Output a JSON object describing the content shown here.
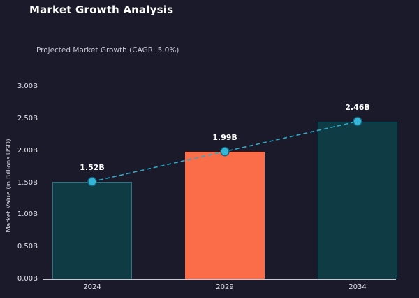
{
  "chart_data": {
    "type": "bar",
    "title": "Market Growth Analysis",
    "subtitle": "Projected Market Growth (CAGR: 5.0%)",
    "categories": [
      "2024",
      "2029",
      "2034"
    ],
    "values": [
      1.52,
      1.99,
      2.46
    ],
    "value_labels": [
      "1.52B",
      "1.99B",
      "2.46B"
    ],
    "xlabel": "",
    "ylabel": "Market Value (in Billions USD)",
    "ylim": [
      0,
      3.0
    ],
    "yticks": [
      0,
      0.5,
      1.0,
      1.5,
      2.0,
      2.5,
      3.0
    ],
    "ytick_labels": [
      "0.00B",
      "0.50B",
      "1.00B",
      "1.50B",
      "2.00B",
      "2.50B",
      "3.00B"
    ],
    "grid": false,
    "legend": "none",
    "bar_styles": [
      {
        "fill": "#0e3b44",
        "stroke": "#2d7586"
      },
      {
        "fill": "#fb6c49",
        "stroke": "#fb6c49"
      },
      {
        "fill": "#0e3b44",
        "stroke": "#2d7586"
      }
    ],
    "trend_line": {
      "style": "dashed",
      "color": "#2fa9c4",
      "marker_fill": "#35b6d6",
      "marker_edge": "#15617a"
    },
    "colors": {
      "background": "#1a1a2b",
      "title": "#ffffff",
      "subtitle": "#c9c9d6",
      "axis_label": "#cfcfda",
      "tick_label": "#e2e2ea",
      "value_label": "#ffffff",
      "axis_line": "#c8c8d2"
    }
  }
}
